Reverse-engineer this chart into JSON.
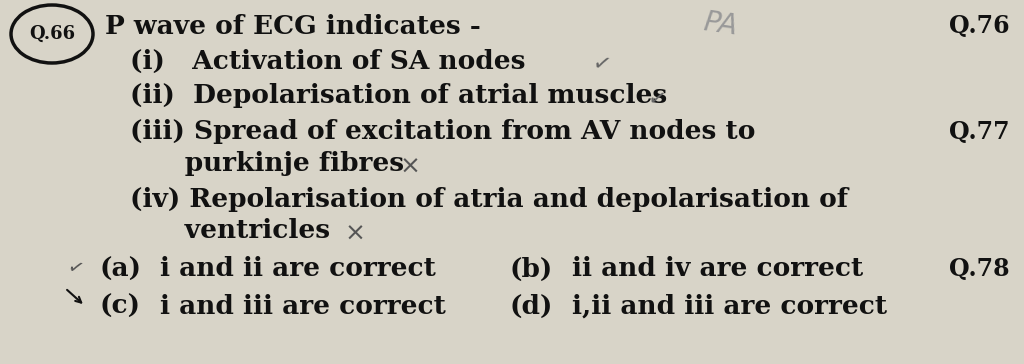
{
  "background_color": "#d8d4c8",
  "question_number": "Q.66",
  "question_text": "P wave of ECG indicates -",
  "font_color": "#111111",
  "main_fontsize": 19,
  "small_fontsize": 17,
  "side_q76": "Q.76",
  "side_q77": "Q.77",
  "side_q78": "Q.78",
  "annotation_PA": "PA",
  "circle_label": "Q.66",
  "item_i": "(i)   Activation of SA nodes",
  "item_ii": "(ii)  Depolarisation of atrial muscles",
  "item_iii_a": "(iii) Spread of excitation from AV nodes to",
  "item_iii_b": "      purkinje fibres",
  "item_iv_a": "(iv) Repolarisation of atria and depolarisation of",
  "item_iv_b": "      ventricles",
  "opt_a_label": "(a)",
  "opt_a_text": "i and ii are correct",
  "opt_b_label": "(b)",
  "opt_b_text": "ii and iv are correct",
  "opt_c_label": "(c)",
  "opt_c_text": "i and iii are correct",
  "opt_d_label": "(d)",
  "opt_d_text": "i,ii and iii are correct"
}
